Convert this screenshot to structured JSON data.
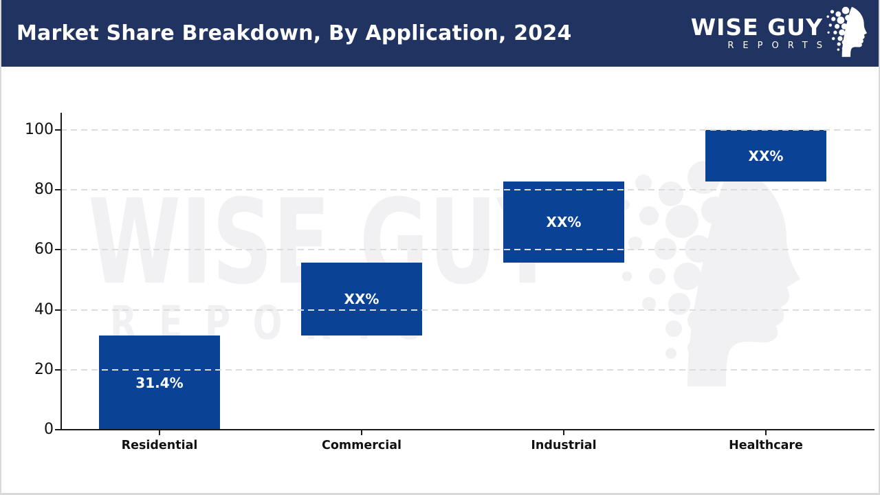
{
  "header": {
    "title": "Market Share Breakdown, By Application, 2024",
    "logo": {
      "wordmark": "WISE GUY",
      "subtext": "REPORTS"
    }
  },
  "watermark": {
    "wordmark": "WISE GUY",
    "subtext": "REPORTS"
  },
  "colors": {
    "header-bg": "#203361",
    "bar": "#0a4296",
    "bar-label": "#ffffff",
    "grid": "#dcdcdc",
    "axis": "#1a1a1a",
    "tick-label": "#111111",
    "watermark": "#f1f1f4"
  },
  "chart_data": {
    "type": "bar",
    "subtype": "waterfall",
    "title": "Market Share Breakdown, By Application, 2024",
    "categories": [
      "Residential",
      "Commercial",
      "Industrial",
      "Healthcare"
    ],
    "bars": [
      {
        "category": "Residential",
        "start": 0,
        "end": 31.4,
        "label": "31.4%"
      },
      {
        "category": "Commercial",
        "start": 31.4,
        "end": 55.7,
        "label": "XX%"
      },
      {
        "category": "Industrial",
        "start": 55.7,
        "end": 82.7,
        "label": "XX%"
      },
      {
        "category": "Healthcare",
        "start": 82.7,
        "end": 100,
        "label": "XX%"
      }
    ],
    "yticks": [
      0,
      20,
      40,
      60,
      80,
      100
    ],
    "ylim": [
      0,
      105.7
    ],
    "xlabel": "",
    "ylabel": "",
    "grid": "horizontal-dashed",
    "legend": false
  }
}
